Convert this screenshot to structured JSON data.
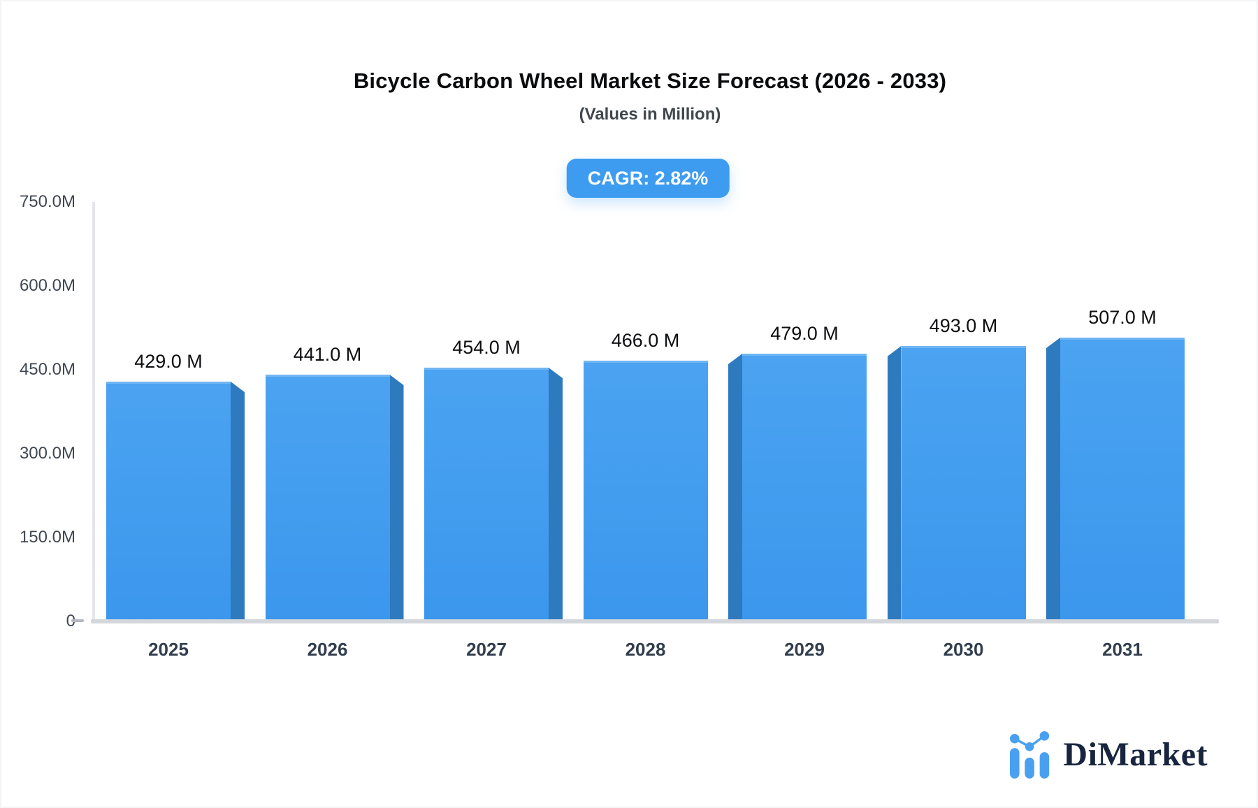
{
  "header": {
    "title": "Bicycle Carbon Wheel Market Size Forecast (2026 - 2033)",
    "subtitle": "(Values in Million)",
    "cagr_badge": "CAGR: 2.82%"
  },
  "chart_data": {
    "type": "bar",
    "title": "Bicycle Carbon Wheel Market Size Forecast (2026 - 2033)",
    "subtitle": "(Values in Million)",
    "unit": "Million",
    "cagr": "2.82%",
    "categories": [
      "2025",
      "2026",
      "2027",
      "2028",
      "2029",
      "2030",
      "2031"
    ],
    "values": [
      429,
      441,
      454,
      466,
      479,
      493,
      507
    ],
    "value_labels": [
      "429.0 M",
      "441.0 M",
      "454.0 M",
      "466.0 M",
      "479.0 M",
      "493.0 M",
      "507.0 M"
    ],
    "y_ticks": [
      {
        "value": 750,
        "label": "750.0M"
      },
      {
        "value": 600,
        "label": "600.0M"
      },
      {
        "value": 450,
        "label": "450.0M"
      },
      {
        "value": 300,
        "label": "300.0M"
      },
      {
        "value": 150,
        "label": "150.0M"
      },
      {
        "value": 0,
        "label": "0"
      }
    ],
    "ylim": [
      0,
      750
    ],
    "grid": false,
    "legend": false,
    "colors": {
      "bar_front_top": "#4ba3f1",
      "bar_front_bottom": "#3b97ed",
      "bar_top_highlight": "#71b6f3",
      "bar_side": "#2e7abf",
      "axis_line": "#e4e6ea",
      "baseline": "#d3d6db",
      "cagr_badge_bg": "#3d9cf0",
      "value_text": "#0d0e10",
      "year_text": "#323e4e",
      "ytick_text": "#3f4752"
    }
  },
  "branding": {
    "name": "DiMarket",
    "icon": "bar-line-chart-icon",
    "icon_color": "#4aa0f0"
  }
}
